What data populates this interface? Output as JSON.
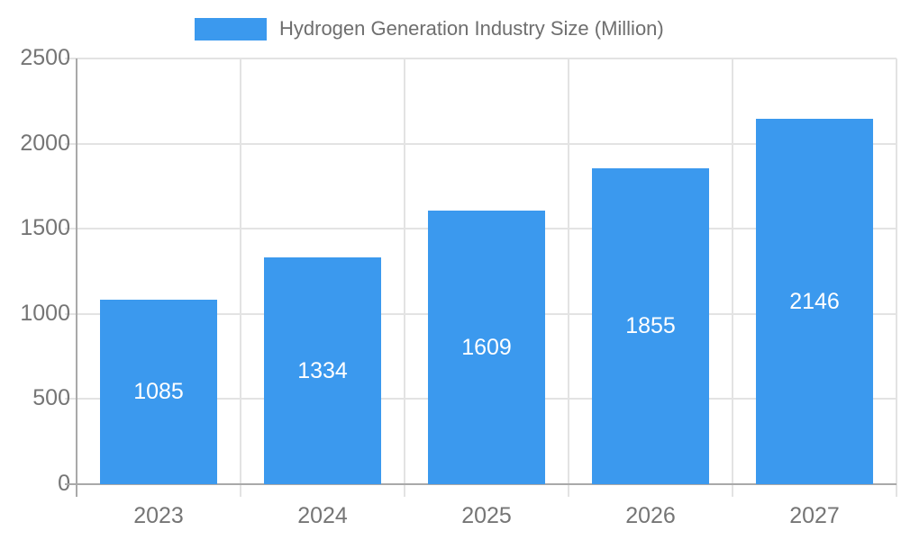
{
  "chart_data": {
    "type": "bar",
    "title": "Hydrogen Generation Industry Size (Million)",
    "categories": [
      "2023",
      "2024",
      "2025",
      "2026",
      "2027"
    ],
    "values": [
      1085,
      1334,
      1609,
      1855,
      2146
    ],
    "xlabel": "",
    "ylabel": "",
    "ylim": [
      0,
      2500
    ],
    "yticks": [
      0,
      500,
      1000,
      1500,
      2000,
      2500
    ],
    "grid": true,
    "legend_position": "top-center",
    "value_labels_position": "inside-center"
  },
  "legend": {
    "items": [
      {
        "label": "Hydrogen Generation Industry Size (Million)"
      }
    ]
  },
  "colors": {
    "bar": "#3B99EE",
    "axis_line": "#a9a9a9",
    "grid_line": "#e3e3e3",
    "tick_text": "#757575",
    "legend_text": "#6e6e6e",
    "value_text": "#ffffff",
    "background": "#ffffff"
  }
}
